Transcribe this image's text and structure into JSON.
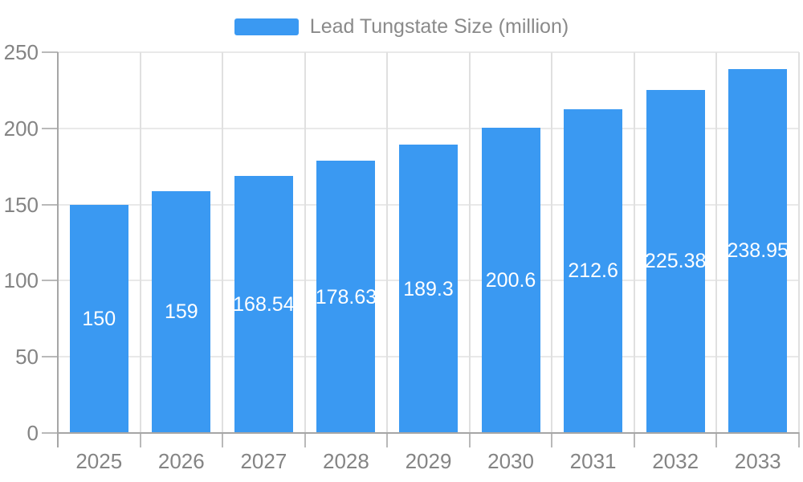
{
  "chart_data": {
    "type": "bar",
    "title": "Lead Tungstate Size (million)",
    "xlabel": "",
    "ylabel": "",
    "categories": [
      "2025",
      "2026",
      "2027",
      "2028",
      "2029",
      "2030",
      "2031",
      "2032",
      "2033"
    ],
    "series": [
      {
        "name": "Lead Tungstate Size (million)",
        "values": [
          150,
          159,
          168.54,
          178.63,
          189.3,
          200.6,
          212.6,
          225.38,
          238.95
        ]
      }
    ],
    "value_labels": [
      "150",
      "159",
      "168.54",
      "178.63",
      "189.3",
      "200.6",
      "212.6",
      "225.38",
      "238.95"
    ],
    "ylim": [
      0,
      250
    ],
    "ytick_step": 50,
    "ytick_labels": [
      "0",
      "50",
      "100",
      "150",
      "200",
      "250"
    ],
    "grid": true,
    "legend_position": "top-center",
    "colors": {
      "bar": "#3A99F2",
      "axis_text": "#848484",
      "legend_text": "#8A8A8A",
      "h_gridline": "#E9E9E9",
      "v_gridline": "#E0E0E0",
      "axis_line": "#A6A6A6",
      "value_label": "#FFFFFF",
      "background": "#FFFFFF"
    }
  }
}
